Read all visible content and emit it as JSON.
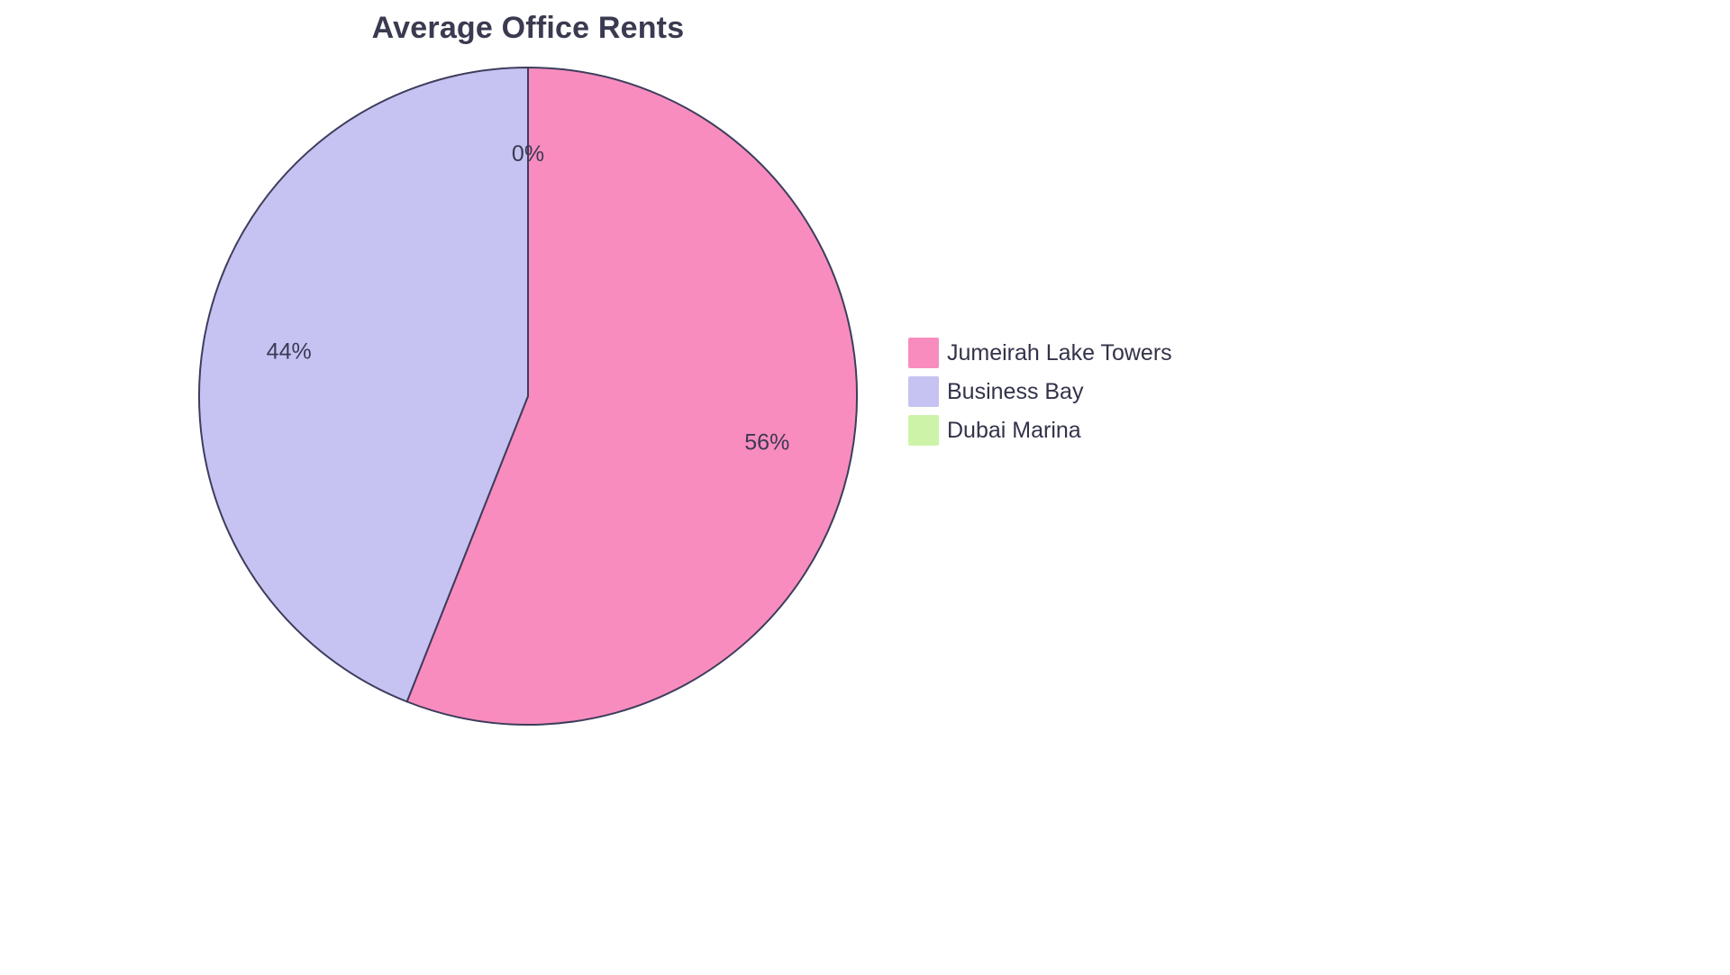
{
  "chart_data": {
    "type": "pie",
    "title": "Average Office Rents",
    "labels": [
      "Jumeirah Lake Towers",
      "Business Bay",
      "Dubai Marina"
    ],
    "values": [
      56,
      44,
      0
    ],
    "percent_labels": [
      "56%",
      "44%",
      "0%"
    ],
    "colors": [
      "#F98CBE",
      "#C6C3F2",
      "#CDF3A9"
    ],
    "stroke_color": "#3D3D5C",
    "text_color": "#3A3A55",
    "start_angle": "top",
    "direction": "clockwise",
    "legend_position": "right",
    "label_radius_fraction": 0.74
  }
}
